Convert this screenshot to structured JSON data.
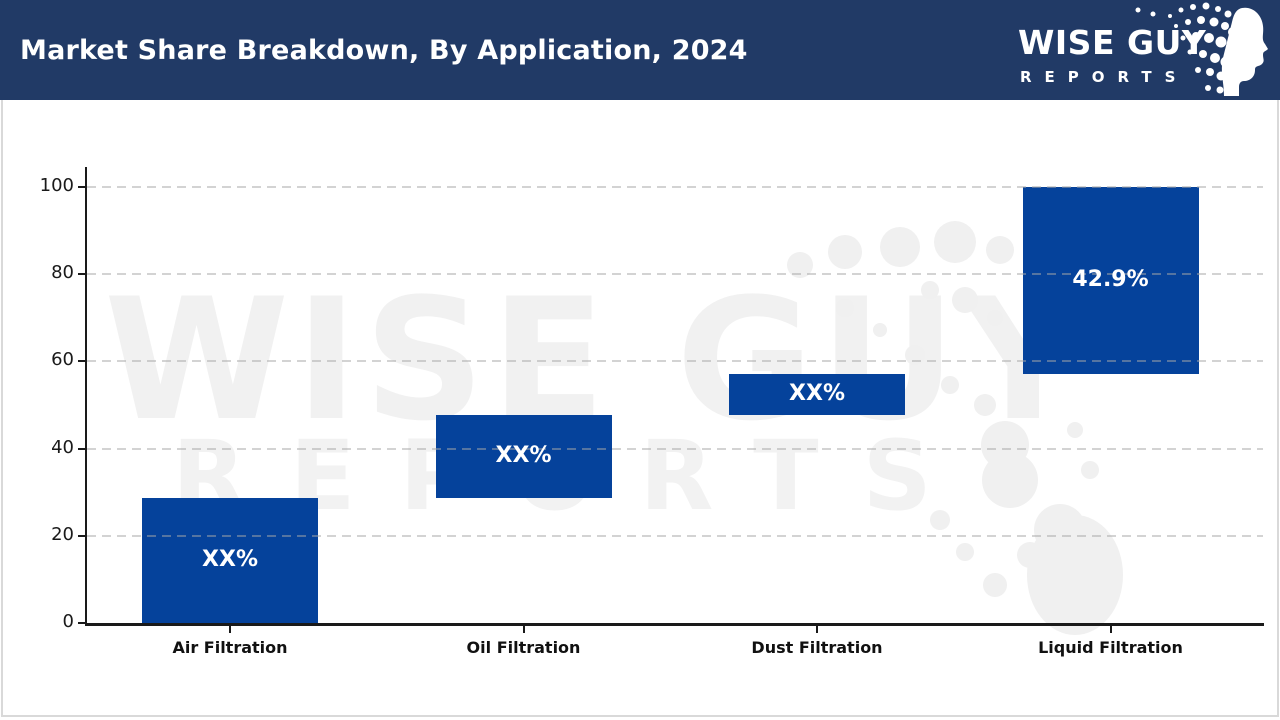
{
  "header": {
    "title": "Market Share Breakdown, By Application, 2024",
    "logo": {
      "name": "WISE GUY",
      "tagline": "REPORTS"
    }
  },
  "watermark": {
    "line1": "WISE GUY",
    "line2": "REPORTS"
  },
  "chart_data": {
    "type": "bar",
    "subtype": "floating-segment-waterfall",
    "title": "Market Share Breakdown, By Application, 2024",
    "categories": [
      "Air Filtration",
      "Oil Filtration",
      "Dust Filtration",
      "Liquid Filtration"
    ],
    "segments": [
      {
        "category": "Air Filtration",
        "start": 0,
        "end": 28.6,
        "label": "XX%"
      },
      {
        "category": "Oil Filtration",
        "start": 28.6,
        "end": 47.6,
        "label": "XX%"
      },
      {
        "category": "Dust Filtration",
        "start": 47.6,
        "end": 57.1,
        "label": "XX%"
      },
      {
        "category": "Liquid Filtration",
        "start": 57.1,
        "end": 100,
        "label": "42.9%"
      }
    ],
    "xlabel": "",
    "ylabel": "",
    "ylim": [
      0,
      104
    ],
    "yticks": [
      0,
      20,
      40,
      60,
      80,
      100
    ],
    "grid": "horizontal-dashed",
    "legend": "none",
    "colors": {
      "bar": "#05429B",
      "bar_label": "#FFFFFF",
      "axis": "#1A1A1A",
      "grid": "#D9D9D9",
      "header_bg": "#213A66",
      "header_text": "#FFFFFF",
      "watermark": "#F1F1F1"
    }
  }
}
